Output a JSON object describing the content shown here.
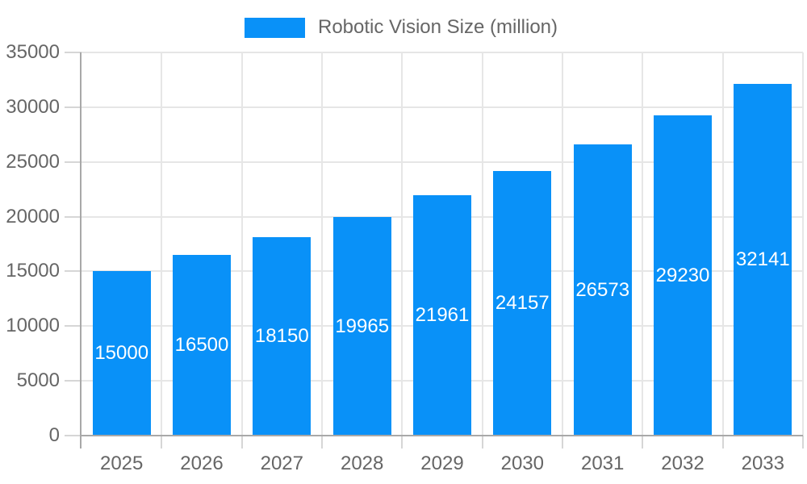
{
  "legend": {
    "label": "Robotic Vision Size (million)",
    "swatch_color": "#0991f8"
  },
  "chart_data": {
    "type": "bar",
    "title": "Robotic Vision Size (million)",
    "categories": [
      "2025",
      "2026",
      "2027",
      "2028",
      "2029",
      "2030",
      "2031",
      "2032",
      "2033"
    ],
    "series": [
      {
        "name": "Robotic Vision Size (million)",
        "color": "#0991f8",
        "values": [
          15000,
          16500,
          18150,
          19965,
          21961,
          24157,
          26573,
          29230,
          32141
        ]
      }
    ],
    "value_labels": [
      "15000",
      "16500",
      "18150",
      "19965",
      "21961",
      "24157",
      "26573",
      "29230",
      "32141"
    ],
    "value_labels_position": "inside-middle",
    "value_label_color": "#ffffff",
    "xlabel": "",
    "ylabel": "",
    "ylim": [
      0,
      35000
    ],
    "ytick_step": 5000,
    "yticks": [
      0,
      5000,
      10000,
      15000,
      20000,
      25000,
      30000,
      35000
    ],
    "grid": true,
    "legend_position": "top-center",
    "colors": {
      "bar": "#0991f8",
      "axis_text": "#666666",
      "gridline": "#e6e6e6",
      "tick": "#d6d6d6",
      "axis_line": "#a8a8a8",
      "background": "#ffffff"
    }
  }
}
